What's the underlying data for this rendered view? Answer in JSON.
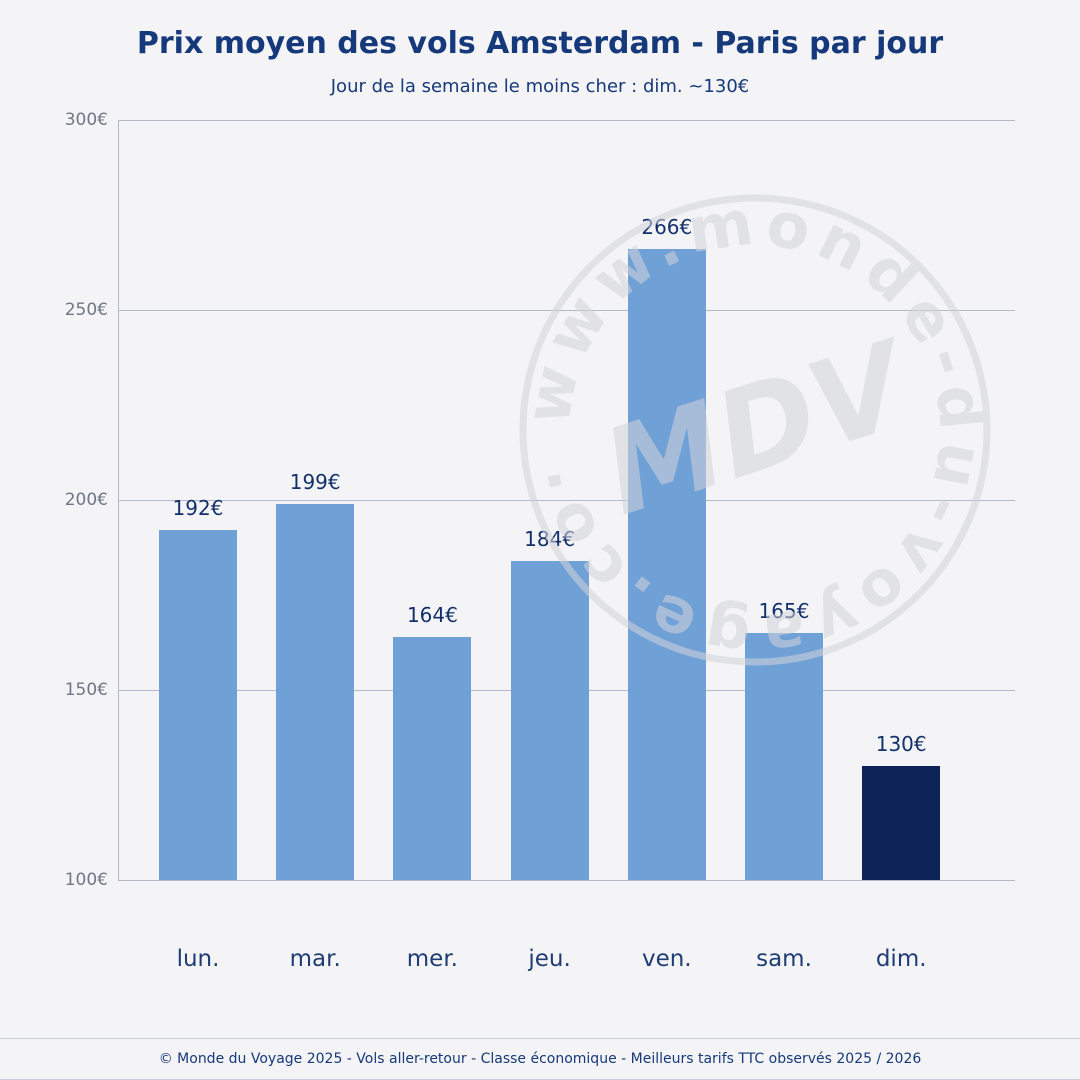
{
  "title": "Prix moyen des vols Amsterdam - Paris par jour",
  "subtitle": "Jour de la semaine le moins cher : dim. ~130€",
  "footer": "© Monde du Voyage 2025 - Vols aller-retour - Classe économique - Meilleurs tarifs TTC observés 2025 / 2026",
  "watermark": {
    "ring_text": "· www.monde-du-voyage.com ·",
    "center_text": "MDV"
  },
  "colors": {
    "background": "#f4f4f6",
    "bar": "#6fa0d6",
    "bar_highlight": "#0d2357",
    "title": "#15397a",
    "grid": "#b3b9c6",
    "tick_label": "#6e7687",
    "value_label": "#12316b"
  },
  "chart_data": {
    "type": "bar",
    "title": "Prix moyen des vols Amsterdam - Paris par jour",
    "subtitle": "Jour de la semaine le moins cher : dim. ~130€",
    "categories": [
      "lun.",
      "mar.",
      "mer.",
      "jeu.",
      "ven.",
      "sam.",
      "dim."
    ],
    "values": [
      192,
      199,
      164,
      184,
      266,
      165,
      130
    ],
    "value_labels": [
      "192€",
      "199€",
      "164€",
      "184€",
      "266€",
      "165€",
      "130€"
    ],
    "highlight_index": 6,
    "xlabel": "",
    "ylabel": "",
    "ylim": [
      100,
      300
    ],
    "yticks": [
      100,
      150,
      200,
      250,
      300
    ],
    "ytick_labels": [
      "100€",
      "150€",
      "200€",
      "250€",
      "300€"
    ],
    "grid": true,
    "legend": "none"
  }
}
